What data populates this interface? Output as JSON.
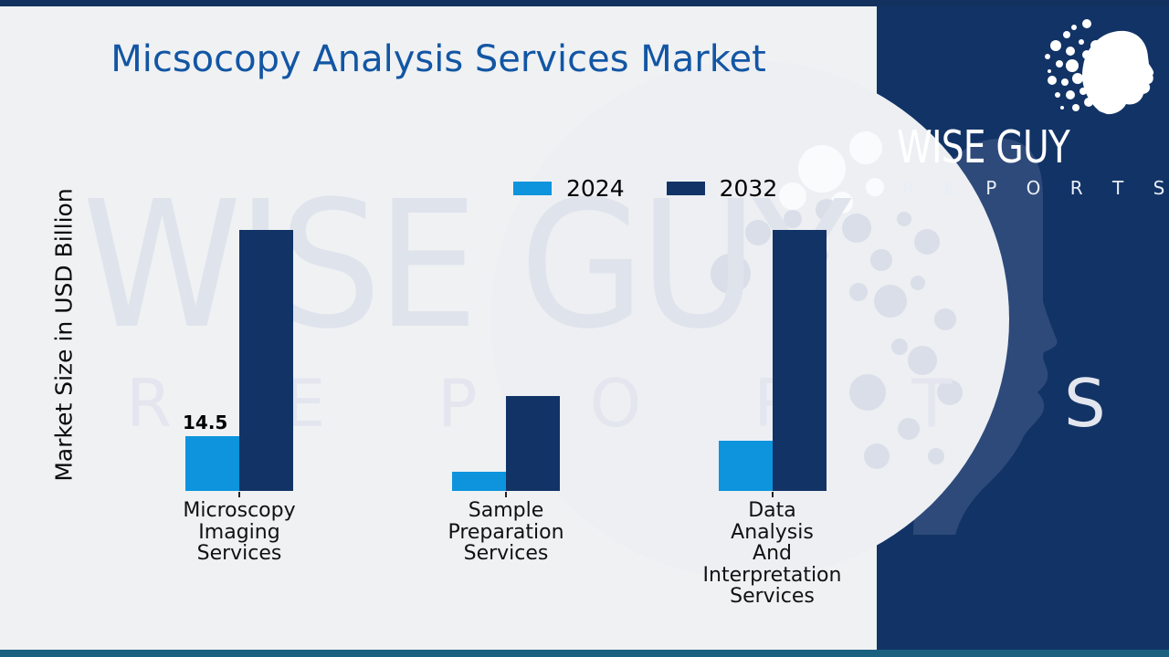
{
  "title": "Micsocopy Analysis Services Market",
  "y_axis_label": "Market Size in USD Billion",
  "legend": {
    "items": [
      {
        "label": "2024",
        "color": "#0d94dd"
      },
      {
        "label": "2032",
        "color": "#123366"
      }
    ]
  },
  "brand_logo": {
    "name_line": "WISE GUY",
    "reports_line": "R E P O R T S"
  },
  "background_watermark": {
    "name_line": "WISE GUY",
    "reports_line": "R E P O R T S"
  },
  "annotations": {
    "bar_value_label": "14.5"
  },
  "colors": {
    "accent_light_blue": "#0d94dd",
    "accent_navy": "#123366",
    "title_blue": "#1256a4",
    "teal_strip": "#19617f",
    "page_background": "#eff1f3",
    "watermark_gray": "#dfe3ec",
    "face_silhouette_blue": "#2e4a7a"
  },
  "chart_data": {
    "type": "bar",
    "title": "Micsocopy Analysis Services Market",
    "xlabel": "",
    "ylabel": "Market Size in USD Billion",
    "categories": [
      "Microscopy Imaging Services",
      "Sample Preparation Services",
      "Data Analysis And Interpretation Services"
    ],
    "category_label_lines": [
      [
        "Microscopy",
        "Imaging",
        "Services"
      ],
      [
        "Sample",
        "Preparation",
        "Services"
      ],
      [
        "Data",
        "Analysis",
        "And",
        "Interpretation",
        "Services"
      ]
    ],
    "series": [
      {
        "name": "2024",
        "color": "#0d94dd",
        "values": [
          14.5,
          5.1,
          13.3
        ]
      },
      {
        "name": "2032",
        "color": "#123366",
        "values": [
          69.1,
          25.1,
          69.1
        ]
      }
    ],
    "data_labels": [
      {
        "series": "2024",
        "category_index": 0,
        "text": "14.5"
      }
    ],
    "ylim": [
      0,
      75
    ],
    "grid": false,
    "axis_line": false,
    "legend_position": "top-center"
  }
}
